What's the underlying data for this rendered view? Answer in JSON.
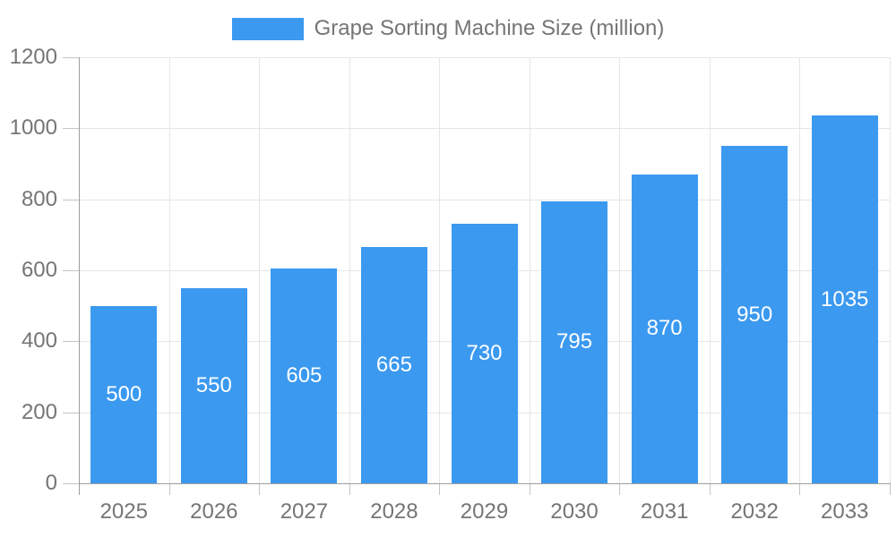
{
  "legend": {
    "label": "Grape Sorting Machine Size (million)",
    "swatch_color": "#3b99f0"
  },
  "chart_data": {
    "type": "bar",
    "title": "",
    "categories": [
      "2025",
      "2026",
      "2027",
      "2028",
      "2029",
      "2030",
      "2031",
      "2032",
      "2033"
    ],
    "values": [
      500,
      550,
      605,
      665,
      730,
      795,
      870,
      950,
      1035
    ],
    "series_name": "Grape Sorting Machine Size (million)",
    "xlabel": "",
    "ylabel": "",
    "ylim": [
      0,
      1200
    ],
    "yticks": [
      0,
      200,
      400,
      600,
      800,
      1000,
      1200
    ],
    "grid": true,
    "legend_position": "top",
    "value_labels": "inside-center",
    "bar_color": "#3b99f0",
    "value_label_color": "#ffffff"
  }
}
